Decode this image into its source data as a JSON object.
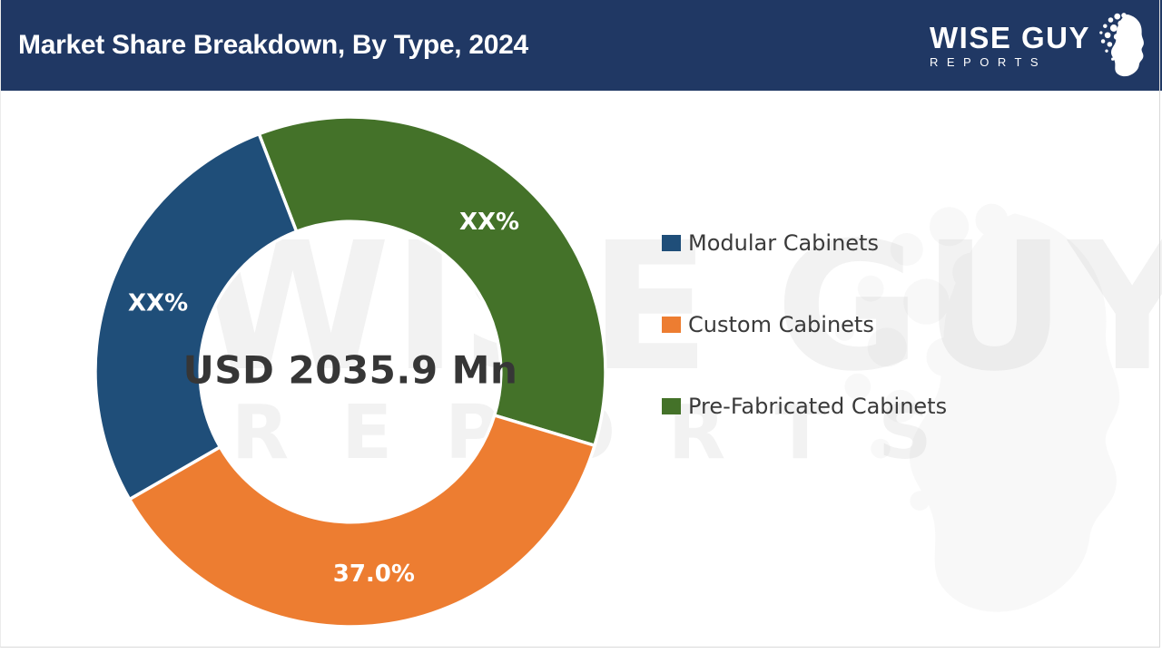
{
  "header": {
    "title": "Market Share Breakdown, By Type, 2024"
  },
  "logo": {
    "line1": "WISE GUY",
    "line2": "REPORTS"
  },
  "watermark": {
    "line1": "WISE GUY",
    "line2": "REPORTS"
  },
  "chart_data": {
    "type": "donut",
    "title": "Market Share Breakdown, By Type, 2024",
    "center_label": "USD 2035.9 Mn",
    "start_angle_deg": -21,
    "inner_radius_ratio": 0.59,
    "label_radius_ratio": 0.8,
    "legend_position": "right",
    "segments": [
      {
        "name": "Pre-Fabricated Cabinets",
        "label": "XX%",
        "value": 35.5,
        "color": "#447229"
      },
      {
        "name": "Custom Cabinets",
        "label": "37.0%",
        "value": 37.0,
        "color": "#ED7D31"
      },
      {
        "name": "Modular Cabinets",
        "label": "XX%",
        "value": 27.5,
        "color": "#1F4E79"
      }
    ]
  },
  "legend": {
    "items": [
      {
        "label": "Modular Cabinets",
        "color": "#1F4E79"
      },
      {
        "label": "Custom Cabinets",
        "color": "#ED7D31"
      },
      {
        "label": "Pre-Fabricated Cabinets",
        "color": "#447229"
      }
    ]
  },
  "colors": {
    "header_bg": "#203864",
    "slice_gap": "#FFFFFF",
    "center_text": "#363636",
    "legend_text": "#3A3A3A",
    "watermark": "#F2F2F2"
  }
}
